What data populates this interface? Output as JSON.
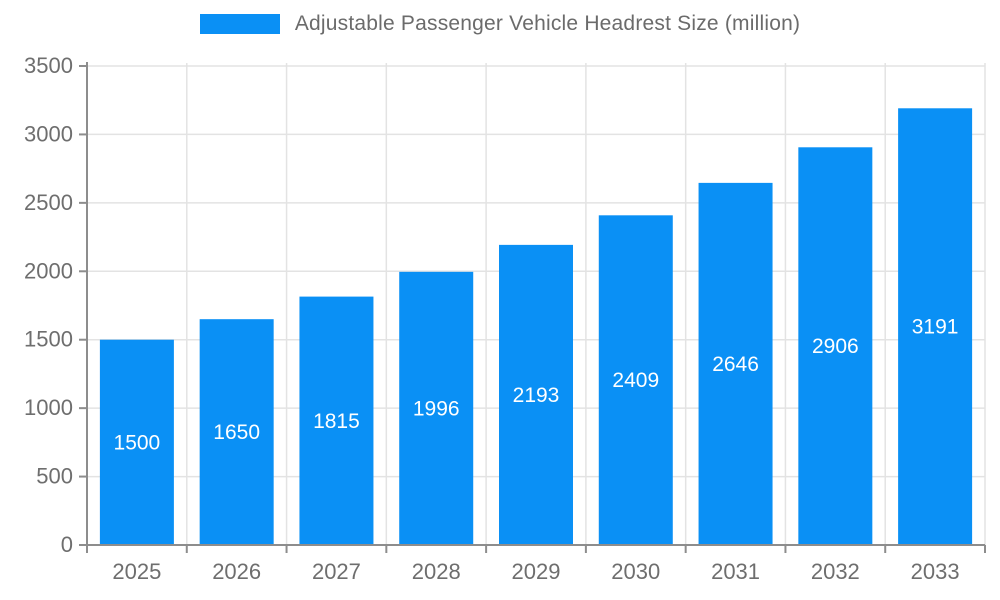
{
  "chart_data": {
    "type": "bar",
    "title": "Adjustable Passenger Vehicle Headrest Size (million)",
    "categories": [
      "2025",
      "2026",
      "2027",
      "2028",
      "2029",
      "2030",
      "2031",
      "2032",
      "2033"
    ],
    "values": [
      1500,
      1650,
      1815,
      1996,
      2193,
      2409,
      2646,
      2906,
      3191
    ],
    "series": [
      {
        "name": "Adjustable Passenger Vehicle Headrest Size (million)",
        "values": [
          1500,
          1650,
          1815,
          1996,
          2193,
          2409,
          2646,
          2906,
          3191
        ]
      }
    ],
    "xlabel": "",
    "ylabel": "",
    "ylim": [
      0,
      3500
    ],
    "yticks": [
      0,
      500,
      1000,
      1500,
      2000,
      2500,
      3000,
      3500
    ],
    "grid": true,
    "legend_position": "top",
    "value_labels_shown_inside_bars": true
  },
  "legend": {
    "label": "Adjustable Passenger Vehicle Headrest Size (million)"
  },
  "colors": {
    "bar": "#0a90f5",
    "bar_value_label": "#ffffff",
    "grid": "#e3e3e3",
    "axis": "#8d8d8d",
    "tick_label": "#6e6e6e",
    "legend_text": "#6b6b6b",
    "background": "#ffffff"
  }
}
